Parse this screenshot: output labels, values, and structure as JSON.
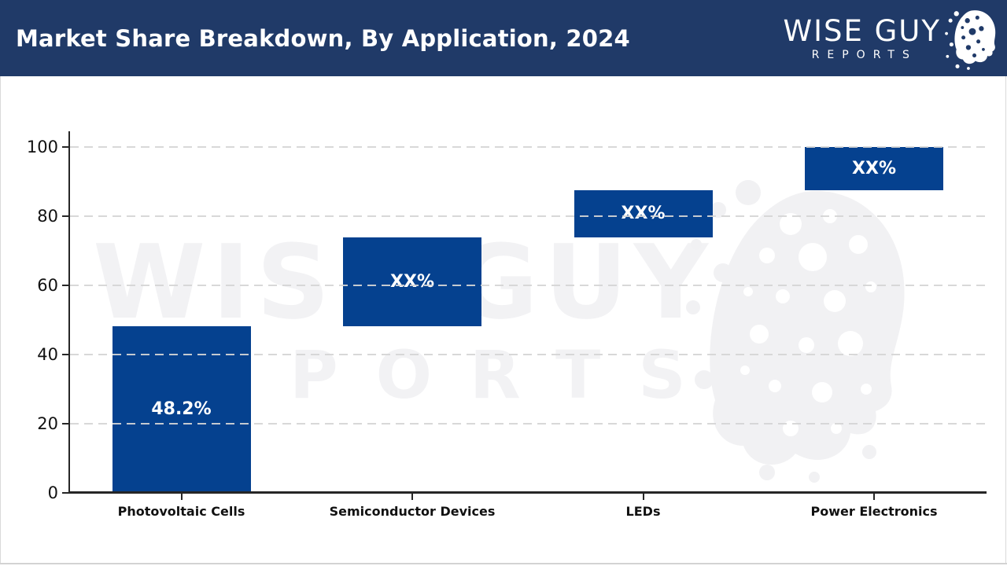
{
  "header": {
    "title": "Market Share Breakdown, By Application, 2024",
    "background": "#203a68",
    "logo": {
      "line1": "WISE GUY",
      "line2": "REPORTS"
    }
  },
  "watermark": {
    "line1": "WISE GUY",
    "line2": "REPORTS"
  },
  "chart_data": {
    "type": "bar",
    "subtype": "waterfall",
    "title": "Market Share Breakdown, By Application, 2024",
    "categories": [
      "Photovoltaic Cells",
      "Semiconductor Devices",
      "LEDs",
      "Power Electronics"
    ],
    "segments": [
      {
        "category": "Photovoltaic Cells",
        "start": 0,
        "end": 48.2,
        "label": "48.2%"
      },
      {
        "category": "Semiconductor Devices",
        "start": 48.2,
        "end": 73.9,
        "label": "XX%"
      },
      {
        "category": "LEDs",
        "start": 73.9,
        "end": 87.6,
        "label": "XX%"
      },
      {
        "category": "Power Electronics",
        "start": 87.6,
        "end": 100,
        "label": "XX%"
      }
    ],
    "xlabel": "",
    "ylabel": "",
    "yticks": [
      0,
      20,
      40,
      60,
      80,
      100
    ],
    "ylim": [
      0,
      104
    ],
    "grid": "horizontal-dashed",
    "legend": "none",
    "bar_color": "#05418f",
    "bar_label_color": "#ffffff"
  },
  "colors": {
    "header_bg": "#203a68",
    "bar": "#05418f",
    "axis": "#262626",
    "grid": "#d8d8d8",
    "tick_text": "#111111",
    "watermark": "#f2f2f4"
  }
}
